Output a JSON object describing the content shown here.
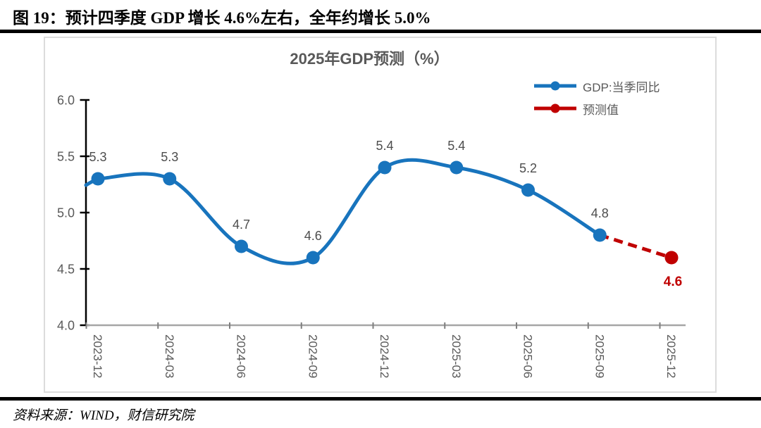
{
  "page": {
    "figure_title": "图 19：预计四季度 GDP 增长 4.6%左右，全年约增长 5.0%",
    "source_note": "资料来源：WIND，财信研究院"
  },
  "chart_data": {
    "type": "line",
    "title": "2025年GDP预测（%）",
    "categories": [
      "2023-12",
      "2024-03",
      "2024-06",
      "2024-09",
      "2024-12",
      "2025-03",
      "2025-06",
      "2025-09",
      "2025-12"
    ],
    "series": [
      {
        "name": "GDP:当季同比",
        "values": [
          5.3,
          5.3,
          4.7,
          4.6,
          5.4,
          5.4,
          5.2,
          4.8,
          null
        ],
        "color": "#1874bd",
        "line_style": "solid-smooth",
        "marker": "circle"
      },
      {
        "name": "预测值",
        "values": [
          null,
          null,
          null,
          null,
          null,
          null,
          null,
          4.8,
          4.6
        ],
        "color": "#c00000",
        "line_style": "dashed",
        "marker": "circle"
      }
    ],
    "ylim": [
      4.0,
      6.0
    ],
    "yticks": [
      6.0,
      5.5,
      5.0,
      4.5,
      4.0
    ],
    "ytick_labels": [
      "6.0",
      "5.5",
      "5.0",
      "4.5",
      "4.0"
    ],
    "grid": false,
    "legend_position": "top-right",
    "colors": {
      "axis_text": "#595959",
      "data_label": "#4d4d4d",
      "y_axis_line": "#000000",
      "x_axis_line": "#a6a6a6"
    }
  }
}
